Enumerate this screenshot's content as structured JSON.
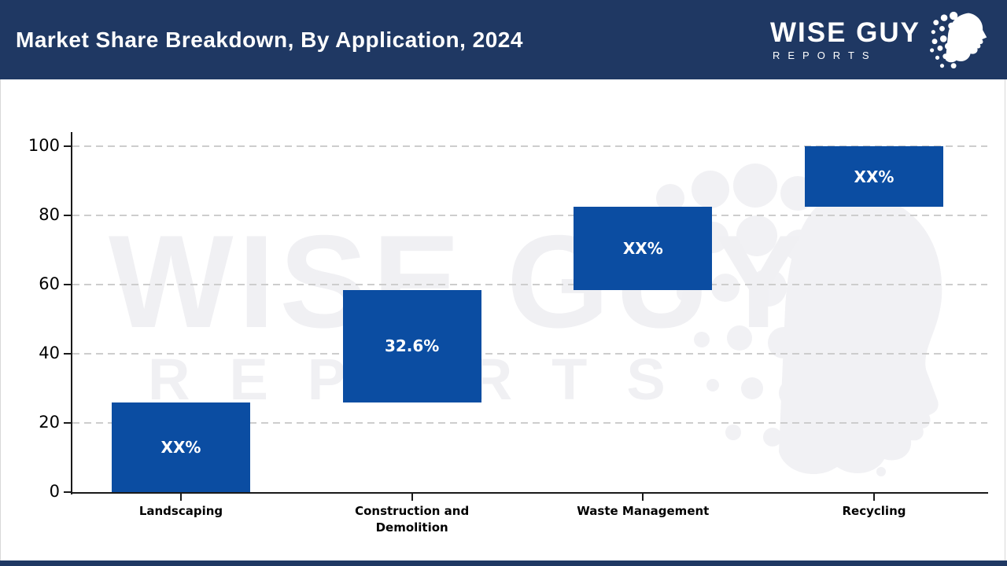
{
  "header": {
    "title": "Market Share Breakdown, By Application, 2024",
    "logo": {
      "line1": "WISE GUY",
      "line2": "REPORTS"
    }
  },
  "watermark": {
    "line1": "WISE GUY",
    "line2": "REPORTS"
  },
  "chart_data": {
    "type": "bar",
    "subtype": "waterfall",
    "title": "Market Share Breakdown, By Application, 2024",
    "xlabel": "",
    "ylabel": "",
    "categories": [
      "Landscaping",
      "Construction and Demolition",
      "Waste Management",
      "Recycling"
    ],
    "segments": [
      {
        "category": "Landscaping",
        "base": 0,
        "top": 25.9,
        "value": null,
        "label": "XX%"
      },
      {
        "category": "Construction and Demolition",
        "base": 25.9,
        "top": 58.5,
        "value": 32.6,
        "label": "32.6%"
      },
      {
        "category": "Waste Management",
        "base": 58.5,
        "top": 82.4,
        "value": null,
        "label": "XX%"
      },
      {
        "category": "Recycling",
        "base": 82.4,
        "top": 100,
        "value": null,
        "label": "XX%"
      }
    ],
    "yticks": [
      0,
      20,
      40,
      60,
      80,
      100
    ],
    "ylim": [
      0,
      104.5
    ],
    "grid": "horizontal-dashed",
    "legend": "none",
    "bar_color": "#0B4DA2",
    "bar_label_color": "#FFFFFF"
  },
  "colors": {
    "header_bg": "#1F3863",
    "footer_bg": "#1F3863",
    "bar": "#0B4DA2",
    "watermark": "#F0F0F3",
    "gridline": "#CDCDCD",
    "axis": "#1A1A1A",
    "title_text": "#FFFFFF",
    "tick_text": "#000000"
  }
}
